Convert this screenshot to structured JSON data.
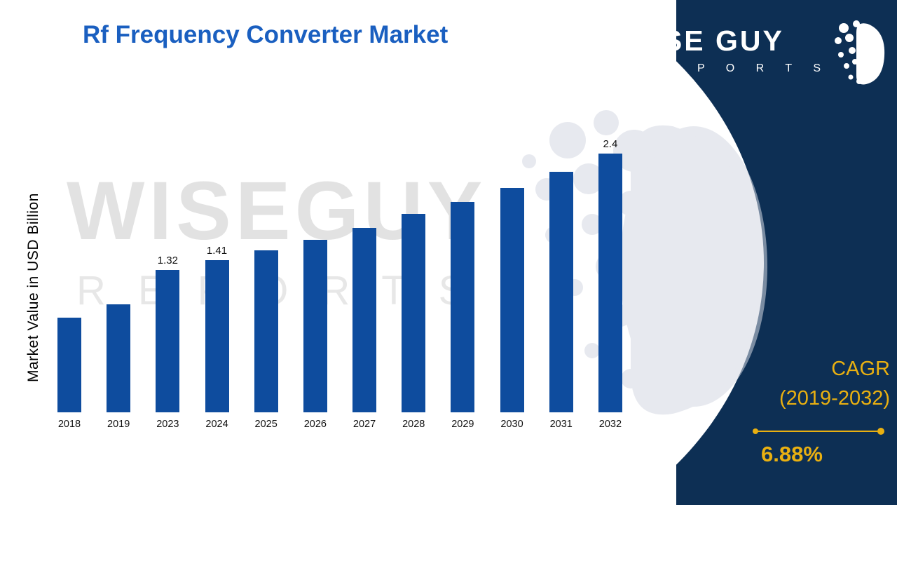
{
  "title": "Rf Frequency Converter Market",
  "watermark": {
    "line1": "WISEGUY",
    "line2": "REPORTS"
  },
  "brand": {
    "name": "WISE GUY",
    "subtitle": "R E P O R T S"
  },
  "cagr": {
    "label": "CAGR",
    "range": "(2019-2032)",
    "value": "6.88%"
  },
  "colors": {
    "bar": "#0e4c9e",
    "title": "#1a5fc0",
    "panel": "#0d2f54",
    "accent": "#e9b011",
    "watermark": "#cccccc"
  },
  "chart_data": {
    "type": "bar",
    "title": "Rf Frequency Converter Market",
    "xlabel": "",
    "ylabel": "Market Value in USD Billion",
    "categories": [
      "2018",
      "2019",
      "2023",
      "2024",
      "2025",
      "2026",
      "2027",
      "2028",
      "2029",
      "2030",
      "2031",
      "2032"
    ],
    "values": [
      0.88,
      1.0,
      1.32,
      1.41,
      1.5,
      1.6,
      1.71,
      1.84,
      1.95,
      2.08,
      2.23,
      2.4
    ],
    "labels": [
      "",
      "",
      "1.32",
      "1.41",
      "",
      "",
      "",
      "",
      "",
      "",
      "",
      "2.4"
    ],
    "ylim": [
      0,
      2.6
    ],
    "grid": false,
    "legend": "none",
    "bar_color": "#0e4c9e"
  }
}
